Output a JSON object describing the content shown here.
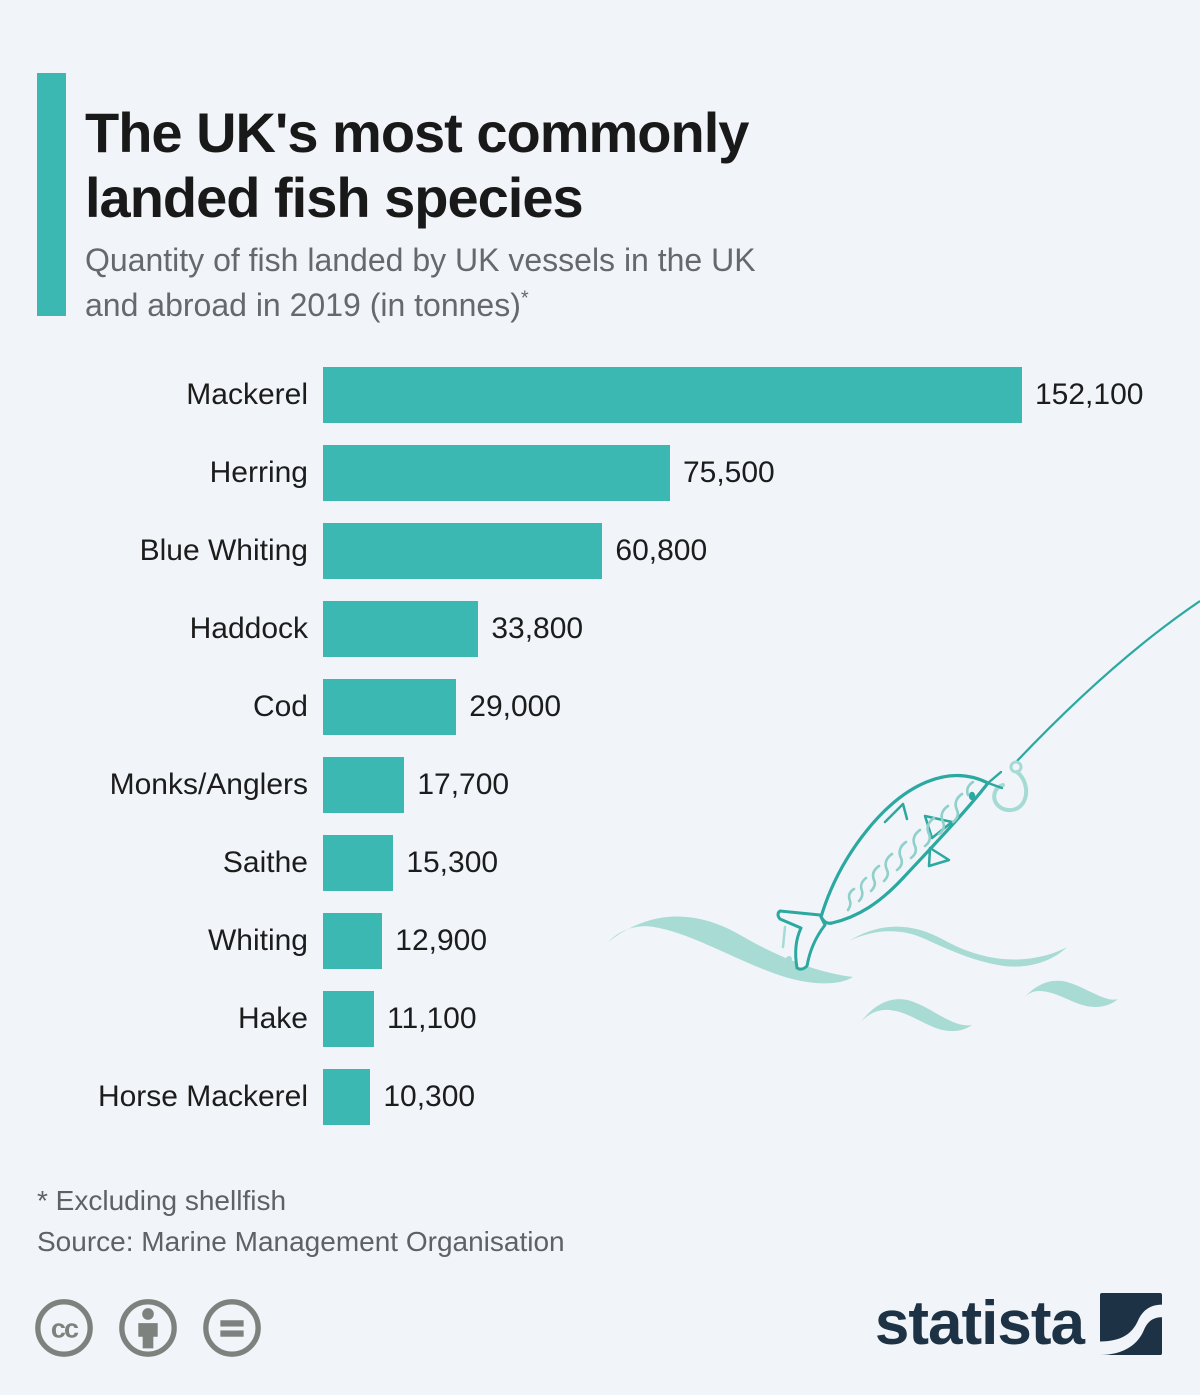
{
  "header": {
    "title_lines": [
      "The UK's most commonly",
      "landed fish species"
    ],
    "subtitle_lines": [
      "Quantity of fish landed by UK vessels in the UK",
      "and abroad in 2019 (in tonnes)"
    ],
    "footnote_marker": "*"
  },
  "chart_data": {
    "type": "bar",
    "orientation": "horizontal",
    "title": "The UK's most commonly landed fish species",
    "subtitle": "Quantity of fish landed by UK vessels in the UK and abroad in 2019 (in tonnes)",
    "unit": "tonnes",
    "categories": [
      "Mackerel",
      "Herring",
      "Blue Whiting",
      "Haddock",
      "Cod",
      "Monks/Anglers",
      "Saithe",
      "Whiting",
      "Hake",
      "Horse Mackerel"
    ],
    "values": [
      152100,
      75500,
      60800,
      33800,
      29000,
      17700,
      15300,
      12900,
      11100,
      10300
    ],
    "value_labels": [
      "152,100",
      "75,500",
      "60,800",
      "33,800",
      "29,000",
      "17,700",
      "15,300",
      "12,900",
      "11,100",
      "10,300"
    ],
    "xlim": [
      0,
      152100
    ],
    "grid": false,
    "legend": false,
    "bar_color": "#3ab8b1"
  },
  "illustration": {
    "name": "mackerel-caught-on-fishing-hook-with-waves"
  },
  "footer": {
    "footnote": "* Excluding shellfish",
    "source": "Source: Marine Management Organisation"
  },
  "branding": {
    "logo_text": "statista",
    "license_icons": [
      "cc",
      "attribution",
      "no-derivatives"
    ]
  },
  "colors": {
    "background": "#f1f5f9",
    "accent_teal": "#3ab8b1",
    "title_text": "#191919",
    "subtitle_text": "#64696e",
    "label_text": "#1c1c1c",
    "footnote_text": "#5d6267",
    "license_gray": "#7d827e",
    "brand_navy": "#1d3245",
    "fish_outline": "#2ba9a1",
    "fish_pattern": "#8fd0ca",
    "wave_teal": "#a9dbd5"
  }
}
